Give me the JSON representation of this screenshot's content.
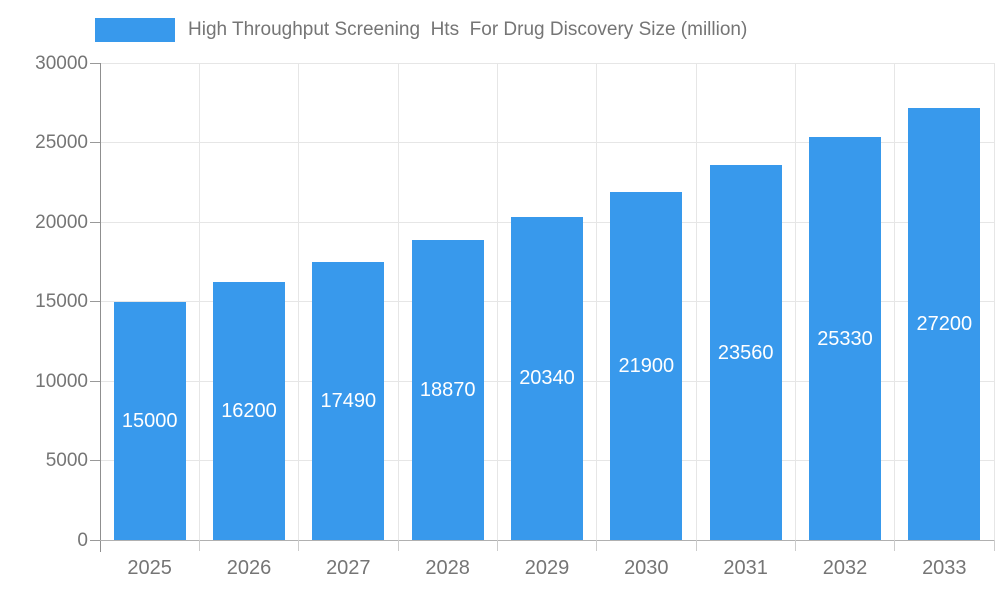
{
  "chart_data": {
    "type": "bar",
    "title": "High Throughput Screening  Hts  For Drug Discovery Size (million)",
    "categories": [
      "2025",
      "2026",
      "2027",
      "2028",
      "2029",
      "2030",
      "2031",
      "2032",
      "2033"
    ],
    "values": [
      15000,
      16200,
      17490,
      18870,
      20340,
      21900,
      23560,
      25330,
      27200
    ],
    "value_labels": [
      "15000",
      "16200",
      "17490",
      "18870",
      "20340",
      "21900",
      "23560",
      "25330",
      "27200"
    ],
    "yticks": [
      0,
      5000,
      10000,
      15000,
      20000,
      25000,
      30000
    ],
    "ytick_labels": [
      "0",
      "5000",
      "10000",
      "15000",
      "20000",
      "25000",
      "30000"
    ],
    "ylim": [
      0,
      30000
    ],
    "xlabel": "",
    "ylabel": "",
    "grid": true,
    "legend_position": "top-left",
    "bar_color": "#3899EC",
    "value_label_color": "#FFFFFF",
    "axis_label_color": "#757575"
  }
}
